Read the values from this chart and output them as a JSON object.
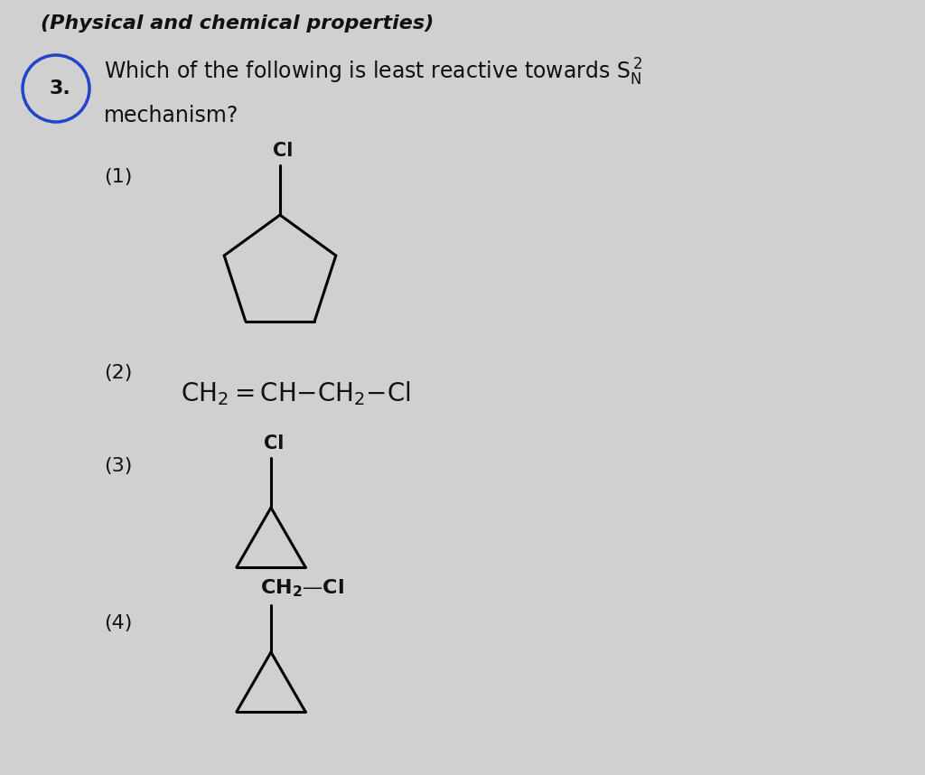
{
  "title_line1": "(Physical and chemical properties)",
  "question_number": "3.",
  "question_line1": "Which of the following is least reactive towards S",
  "question_line2": "mechanism?",
  "bg_color": "#d0d0d0",
  "text_color": "#111111",
  "circle_color": "#2244cc",
  "option1_label": "(1)",
  "option2_label": "(2)",
  "option3_label": "(3)",
  "option4_label": "(4)",
  "figsize": [
    10.24,
    8.58
  ],
  "dpi": 100,
  "lw": 2.2
}
